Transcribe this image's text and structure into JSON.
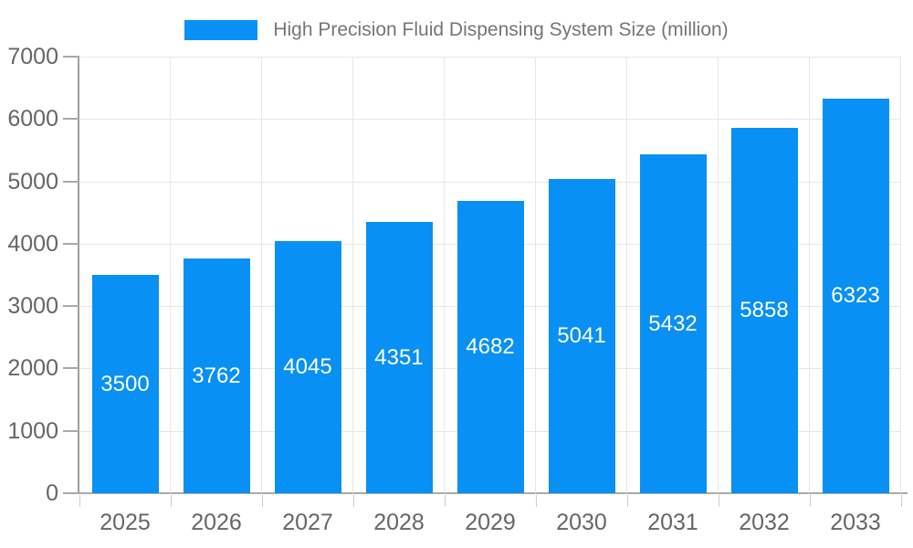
{
  "legend": {
    "label": "High Precision Fluid Dispensing System Size (million)",
    "swatch_color": "#0890F5"
  },
  "chart_data": {
    "type": "bar",
    "title": "High Precision Fluid Dispensing System Size (million)",
    "categories": [
      "2025",
      "2026",
      "2027",
      "2028",
      "2029",
      "2030",
      "2031",
      "2032",
      "2033"
    ],
    "values": [
      3500,
      3762,
      4045,
      4351,
      4682,
      5041,
      5432,
      5858,
      6323
    ],
    "xlabel": "",
    "ylabel": "",
    "ylim": [
      0,
      7000
    ],
    "yticks": [
      0,
      1000,
      2000,
      3000,
      4000,
      5000,
      6000,
      7000
    ],
    "grid": true,
    "value_labels": "inside-center",
    "legend_position": "top-center",
    "colors": {
      "bar": "#0890F5",
      "value_label": "#FFFFFF",
      "title": "#757575",
      "axis_label": "#666666",
      "gridline": "#E6E6E6",
      "y_axis_line": "#9E9E9E",
      "x_axis_line": "#ABABAB"
    }
  }
}
